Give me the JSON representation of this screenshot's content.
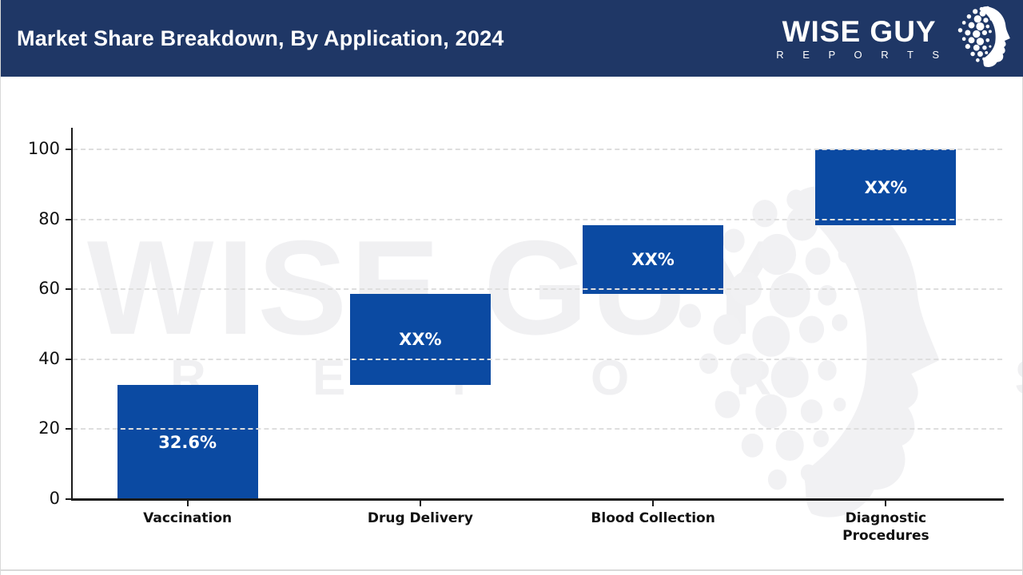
{
  "header": {
    "title": "Market Share Breakdown, By Application, 2024",
    "logo": {
      "brand_line1": "WISE GUY",
      "brand_line2": "REPORTS"
    }
  },
  "watermark": {
    "line1": "WISE GUY",
    "line2": "REPORTS"
  },
  "chart_data": {
    "type": "bar",
    "subtype": "waterfall",
    "title": "Market Share Breakdown, By Application, 2024",
    "categories": [
      "Vaccination",
      "Drug Delivery",
      "Blood Collection",
      "Diagnostic Procedures"
    ],
    "segments": [
      {
        "category": "Vaccination",
        "start": 0,
        "end": 32.6,
        "label": "32.6%"
      },
      {
        "category": "Drug Delivery",
        "start": 32.6,
        "end": 58.7,
        "label": "XX%"
      },
      {
        "category": "Blood Collection",
        "start": 58.7,
        "end": 78.3,
        "label": "XX%"
      },
      {
        "category": "Diagnostic Procedures",
        "start": 78.3,
        "end": 100,
        "label": "XX%"
      }
    ],
    "yticks": [
      "0",
      "20",
      "40",
      "60",
      "80",
      "100"
    ],
    "ylim": [
      0,
      105
    ],
    "xlabel": "",
    "ylabel": "",
    "grid": "dashed-horizontal",
    "legend": "none",
    "bar_color": "#0b4aa2",
    "bar_label_color": "#ffffff"
  },
  "colors": {
    "header_bg": "#1f3766",
    "bar": "#0b4aa2",
    "grid": "#dedede",
    "axis": "#1a1a1a",
    "watermark": "#f0f0f2"
  }
}
